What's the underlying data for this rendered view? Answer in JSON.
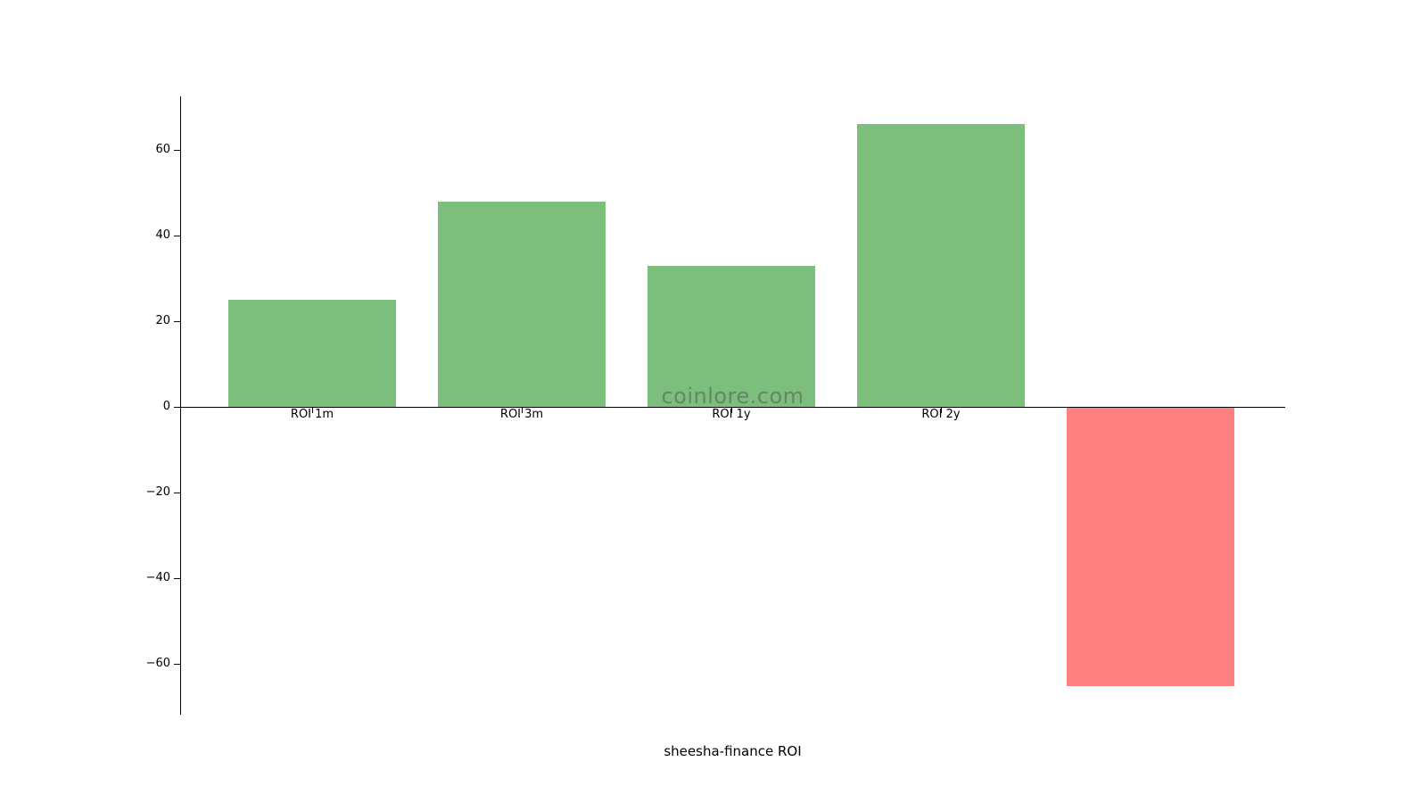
{
  "page": {
    "background": "#ffffff"
  },
  "chart_data": {
    "type": "bar",
    "title": "",
    "xlabel": "sheesha-finance ROI",
    "ylabel": "",
    "categories": [
      "ROI 1m",
      "ROI 3m",
      "ROI 1y",
      "ROI 2y",
      ""
    ],
    "values": [
      25,
      48,
      33,
      66,
      -65
    ],
    "bar_colors": [
      "#7cbe7c",
      "#7cbe7c",
      "#7cbe7c",
      "#7cbe7c",
      "#ff8080"
    ],
    "positive_color": "#7cbe7c",
    "negative_color": "#ff8080",
    "yticks": [
      60,
      40,
      20,
      0,
      -20,
      -40,
      -60
    ],
    "yticklabels": [
      "60",
      "40",
      "20",
      "0",
      "−20",
      "−40",
      "−60"
    ],
    "ylim": [
      -72.5,
      72.5
    ],
    "grid": false,
    "legend_position": "none",
    "axis_color": "#000000",
    "text_color": "#000000",
    "watermark": "coinlore.com",
    "watermark_color": "rgba(80,80,80,0.5)"
  }
}
